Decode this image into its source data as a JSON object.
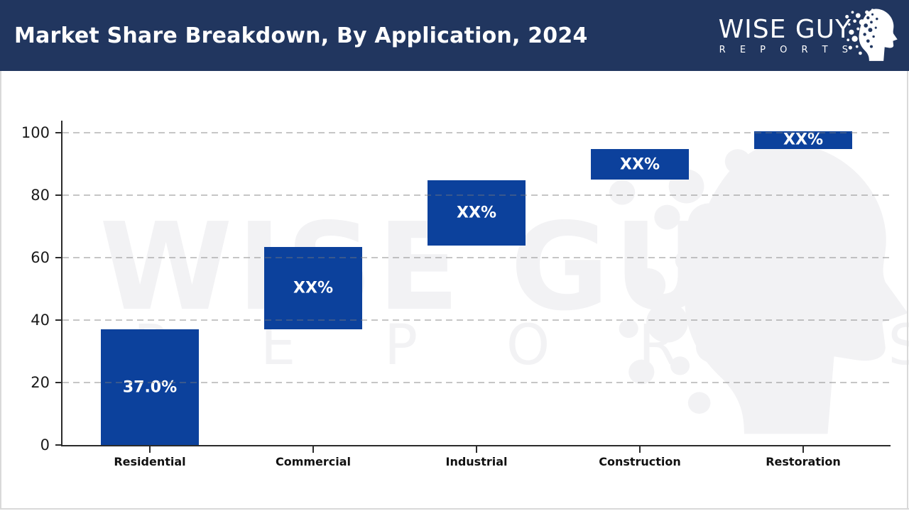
{
  "header": {
    "title": "Market Share Breakdown, By Application, 2024",
    "logo": {
      "line1": "WISE GUY",
      "line2": "R E P O R T S"
    }
  },
  "watermark": {
    "line1": "WISE GUY",
    "line2": "R E P O R T S"
  },
  "chart_data": {
    "type": "bar",
    "subtype": "waterfall",
    "title": "Market Share Breakdown, By Application, 2024",
    "unit": "percent",
    "categories": [
      "Residential",
      "Commercial",
      "Industrial",
      "Construction",
      "Restoration"
    ],
    "segments": [
      {
        "category": "Residential",
        "start": 0,
        "end": 37,
        "value_label": "37.0%"
      },
      {
        "category": "Commercial",
        "start": 37,
        "end": 63.5,
        "value_label": "XX%"
      },
      {
        "category": "Industrial",
        "start": 63.9,
        "end": 84.8,
        "value_label": "XX%"
      },
      {
        "category": "Construction",
        "start": 85,
        "end": 94.8,
        "value_label": "XX%"
      },
      {
        "category": "Restoration",
        "start": 94.8,
        "end": 100.5,
        "value_label": "XX%"
      }
    ],
    "yticks": [
      0,
      20,
      40,
      60,
      80,
      100
    ],
    "ylim": [
      0,
      103.9
    ],
    "xlabel": "",
    "ylabel": "",
    "grid": "horizontal-dashed",
    "legend": false,
    "bar_color": "#0c419c",
    "value_label_color": "#ffffff"
  },
  "colors": {
    "header_bg": "#21365f",
    "bar": "#0c419c",
    "axis": "#2b2b2b",
    "grid": "#c2c2c2",
    "watermark": "#f2f2f4"
  }
}
